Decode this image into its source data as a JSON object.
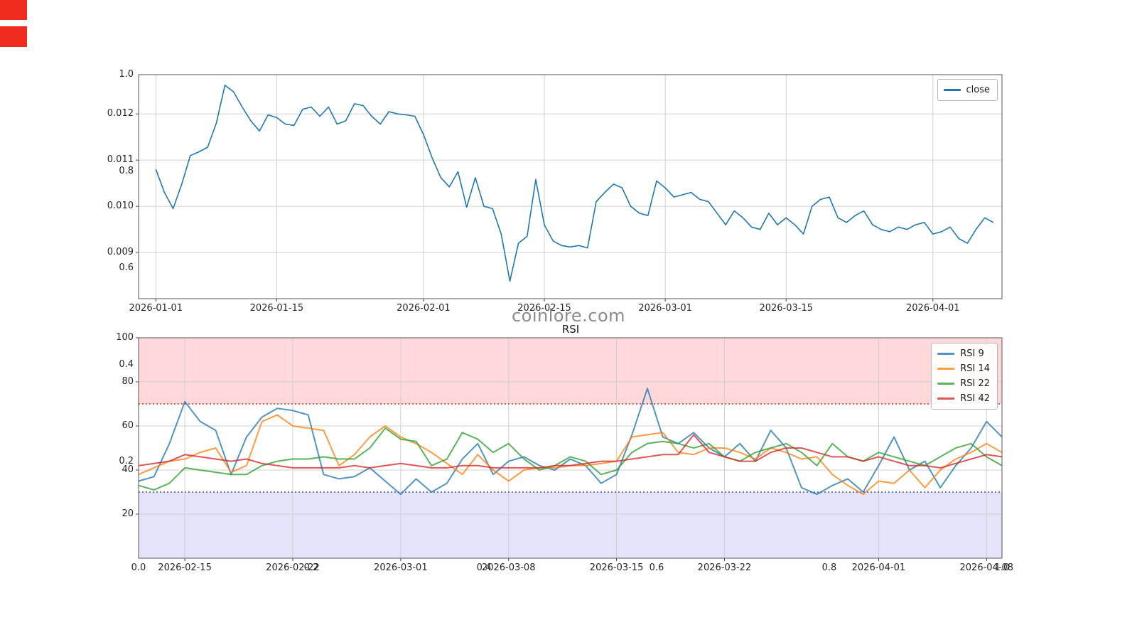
{
  "watermark": "coinlore.com",
  "decor": {
    "corner_squares": [
      {
        "color": "#ee2b1c"
      },
      {
        "color": "#ee2b1c"
      }
    ]
  },
  "overlay_axis": {
    "yticks": [
      {
        "label": "1.0",
        "v": 1.0
      },
      {
        "label": "0.8",
        "v": 0.8
      },
      {
        "label": "0.6",
        "v": 0.6
      },
      {
        "label": "0.4",
        "v": 0.4
      },
      {
        "label": "0.2",
        "v": 0.2
      }
    ],
    "xticks": [
      {
        "label": "0.0",
        "v": 0.0
      },
      {
        "label": "0.2",
        "v": 0.2
      },
      {
        "label": "0.4",
        "v": 0.4
      },
      {
        "label": "0.6",
        "v": 0.6
      },
      {
        "label": "0.8",
        "v": 0.8
      },
      {
        "label": "1.0",
        "v": 1.0
      }
    ]
  },
  "chart_data": [
    {
      "type": "line",
      "title": "",
      "xlabel": "",
      "ylabel": "",
      "grid": true,
      "legend_position": "upper right",
      "xlim_days": [
        -2,
        98
      ],
      "ylim": [
        0.008,
        0.01285
      ],
      "yticks": [
        "0.012",
        "0.011",
        "0.010",
        "0.009"
      ],
      "ytick_values": [
        0.012,
        0.011,
        0.01,
        0.009
      ],
      "xticks": [
        {
          "label": "2026-01-01",
          "day": 0
        },
        {
          "label": "2026-01-15",
          "day": 14
        },
        {
          "label": "2026-02-01",
          "day": 31
        },
        {
          "label": "2026-02-15",
          "day": 45
        },
        {
          "label": "2026-03-01",
          "day": 59
        },
        {
          "label": "2026-03-15",
          "day": 73
        },
        {
          "label": "2026-04-01",
          "day": 90
        }
      ],
      "series": [
        {
          "name": "close",
          "color": "#1f77b4",
          "opacity": 1,
          "width": 1.6,
          "start_day": 0,
          "values": [
            0.0108,
            0.0103,
            0.00995,
            0.01048,
            0.0111,
            0.01118,
            0.01128,
            0.0118,
            0.01262,
            0.01248,
            0.01215,
            0.01185,
            0.01163,
            0.01198,
            0.01192,
            0.01178,
            0.01175,
            0.0121,
            0.01215,
            0.01195,
            0.01215,
            0.01178,
            0.01185,
            0.01222,
            0.01218,
            0.01195,
            0.01178,
            0.01205,
            0.012,
            0.01198,
            0.01195,
            0.01155,
            0.01105,
            0.01062,
            0.01042,
            0.01075,
            0.00998,
            0.01062,
            0.01,
            0.00995,
            0.0094,
            0.00838,
            0.0092,
            0.00935,
            0.01058,
            0.0096,
            0.00925,
            0.00915,
            0.00912,
            0.00915,
            0.0091,
            0.0101,
            0.0103,
            0.01048,
            0.0104,
            0.01,
            0.00985,
            0.0098,
            0.01055,
            0.0104,
            0.0102,
            0.01025,
            0.0103,
            0.01015,
            0.0101,
            0.00985,
            0.0096,
            0.0099,
            0.00975,
            0.00955,
            0.0095,
            0.00985,
            0.0096,
            0.00975,
            0.0096,
            0.0094,
            0.01,
            0.01015,
            0.0102,
            0.00975,
            0.00965,
            0.0098,
            0.0099,
            0.0096,
            0.0095,
            0.00945,
            0.00955,
            0.0095,
            0.0096,
            0.00965,
            0.0094,
            0.00945,
            0.00955,
            0.0093,
            0.0092,
            0.0095,
            0.00975,
            0.00965
          ]
        }
      ]
    },
    {
      "type": "line",
      "title": "RSI",
      "xlabel": "",
      "ylabel": "",
      "grid": true,
      "legend_position": "upper right",
      "xlim_i": [
        0,
        56
      ],
      "ylim": [
        0,
        100
      ],
      "yticks": [
        "100",
        "80",
        "60",
        "40",
        "20"
      ],
      "ytick_values": [
        100,
        80,
        60,
        40,
        20
      ],
      "xticks": [
        {
          "label": "2026-02-15",
          "i": 3
        },
        {
          "label": "2026-02-22",
          "i": 10
        },
        {
          "label": "2026-03-01",
          "i": 17
        },
        {
          "label": "2026-03-08",
          "i": 24
        },
        {
          "label": "2026-03-15",
          "i": 31
        },
        {
          "label": "2026-03-22",
          "i": 38
        },
        {
          "label": "2026-04-01",
          "i": 48
        },
        {
          "label": "2026-04-08",
          "i": 55
        }
      ],
      "bands": [
        {
          "from": 70,
          "to": 100,
          "color": "#ff8888",
          "opacity": 0.32
        },
        {
          "from": 0,
          "to": 30,
          "color": "#9999ee",
          "opacity": 0.28
        }
      ],
      "hlines": [
        {
          "y": 70,
          "color": "#cc0000",
          "style": "dotted"
        },
        {
          "y": 30,
          "color": "#2222cc",
          "style": "dotted"
        }
      ],
      "series": [
        {
          "name": "RSI 9",
          "color": "#1f77b4",
          "opacity": 0.78,
          "width": 2,
          "values": [
            35,
            37,
            52,
            71,
            62,
            58,
            38,
            55,
            64,
            68,
            67,
            65,
            38,
            36,
            37,
            41,
            35,
            29,
            36,
            30,
            34,
            45,
            52,
            38,
            44,
            46,
            42,
            40,
            45,
            42,
            34,
            38,
            56,
            77,
            55,
            52,
            57,
            50,
            46,
            52,
            44,
            58,
            50,
            32,
            29,
            33,
            36,
            30,
            42,
            55,
            40,
            44,
            32,
            42,
            50,
            62,
            55
          ]
        },
        {
          "name": "RSI 14",
          "color": "#ff7f0e",
          "opacity": 0.78,
          "width": 2,
          "values": [
            38,
            41,
            44,
            45,
            48,
            50,
            39,
            42,
            62,
            65,
            60,
            59,
            58,
            42,
            47,
            55,
            60,
            55,
            52,
            48,
            43,
            38,
            47,
            40,
            35,
            40,
            41,
            41,
            42,
            42,
            43,
            44,
            55,
            56,
            57,
            48,
            47,
            50,
            50,
            48,
            45,
            50,
            48,
            45,
            46,
            38,
            33,
            29,
            35,
            34,
            40,
            32,
            40,
            45,
            48,
            52,
            48
          ]
        },
        {
          "name": "RSI 22",
          "color": "#2ca02c",
          "opacity": 0.78,
          "width": 2,
          "values": [
            33,
            31,
            34,
            41,
            40,
            39,
            38,
            38,
            42,
            44,
            45,
            45,
            46,
            45,
            45,
            50,
            59,
            54,
            53,
            42,
            45,
            57,
            54,
            48,
            52,
            45,
            40,
            42,
            46,
            44,
            38,
            40,
            48,
            52,
            53,
            52,
            50,
            52,
            46,
            44,
            48,
            50,
            52,
            48,
            42,
            52,
            46,
            44,
            48,
            46,
            44,
            42,
            46,
            50,
            52,
            46,
            42
          ]
        },
        {
          "name": "RSI 42",
          "color": "#d62728",
          "opacity": 0.78,
          "width": 2,
          "values": [
            42,
            43,
            44,
            47,
            46,
            45,
            44,
            45,
            43,
            42,
            41,
            41,
            41,
            41,
            42,
            41,
            42,
            43,
            42,
            41,
            41,
            42,
            42,
            41,
            41,
            41,
            41,
            42,
            42,
            43,
            44,
            44,
            45,
            46,
            47,
            47,
            56,
            48,
            46,
            44,
            44,
            48,
            50,
            50,
            48,
            46,
            46,
            44,
            46,
            44,
            42,
            42,
            41,
            43,
            45,
            47,
            46
          ]
        }
      ]
    }
  ]
}
